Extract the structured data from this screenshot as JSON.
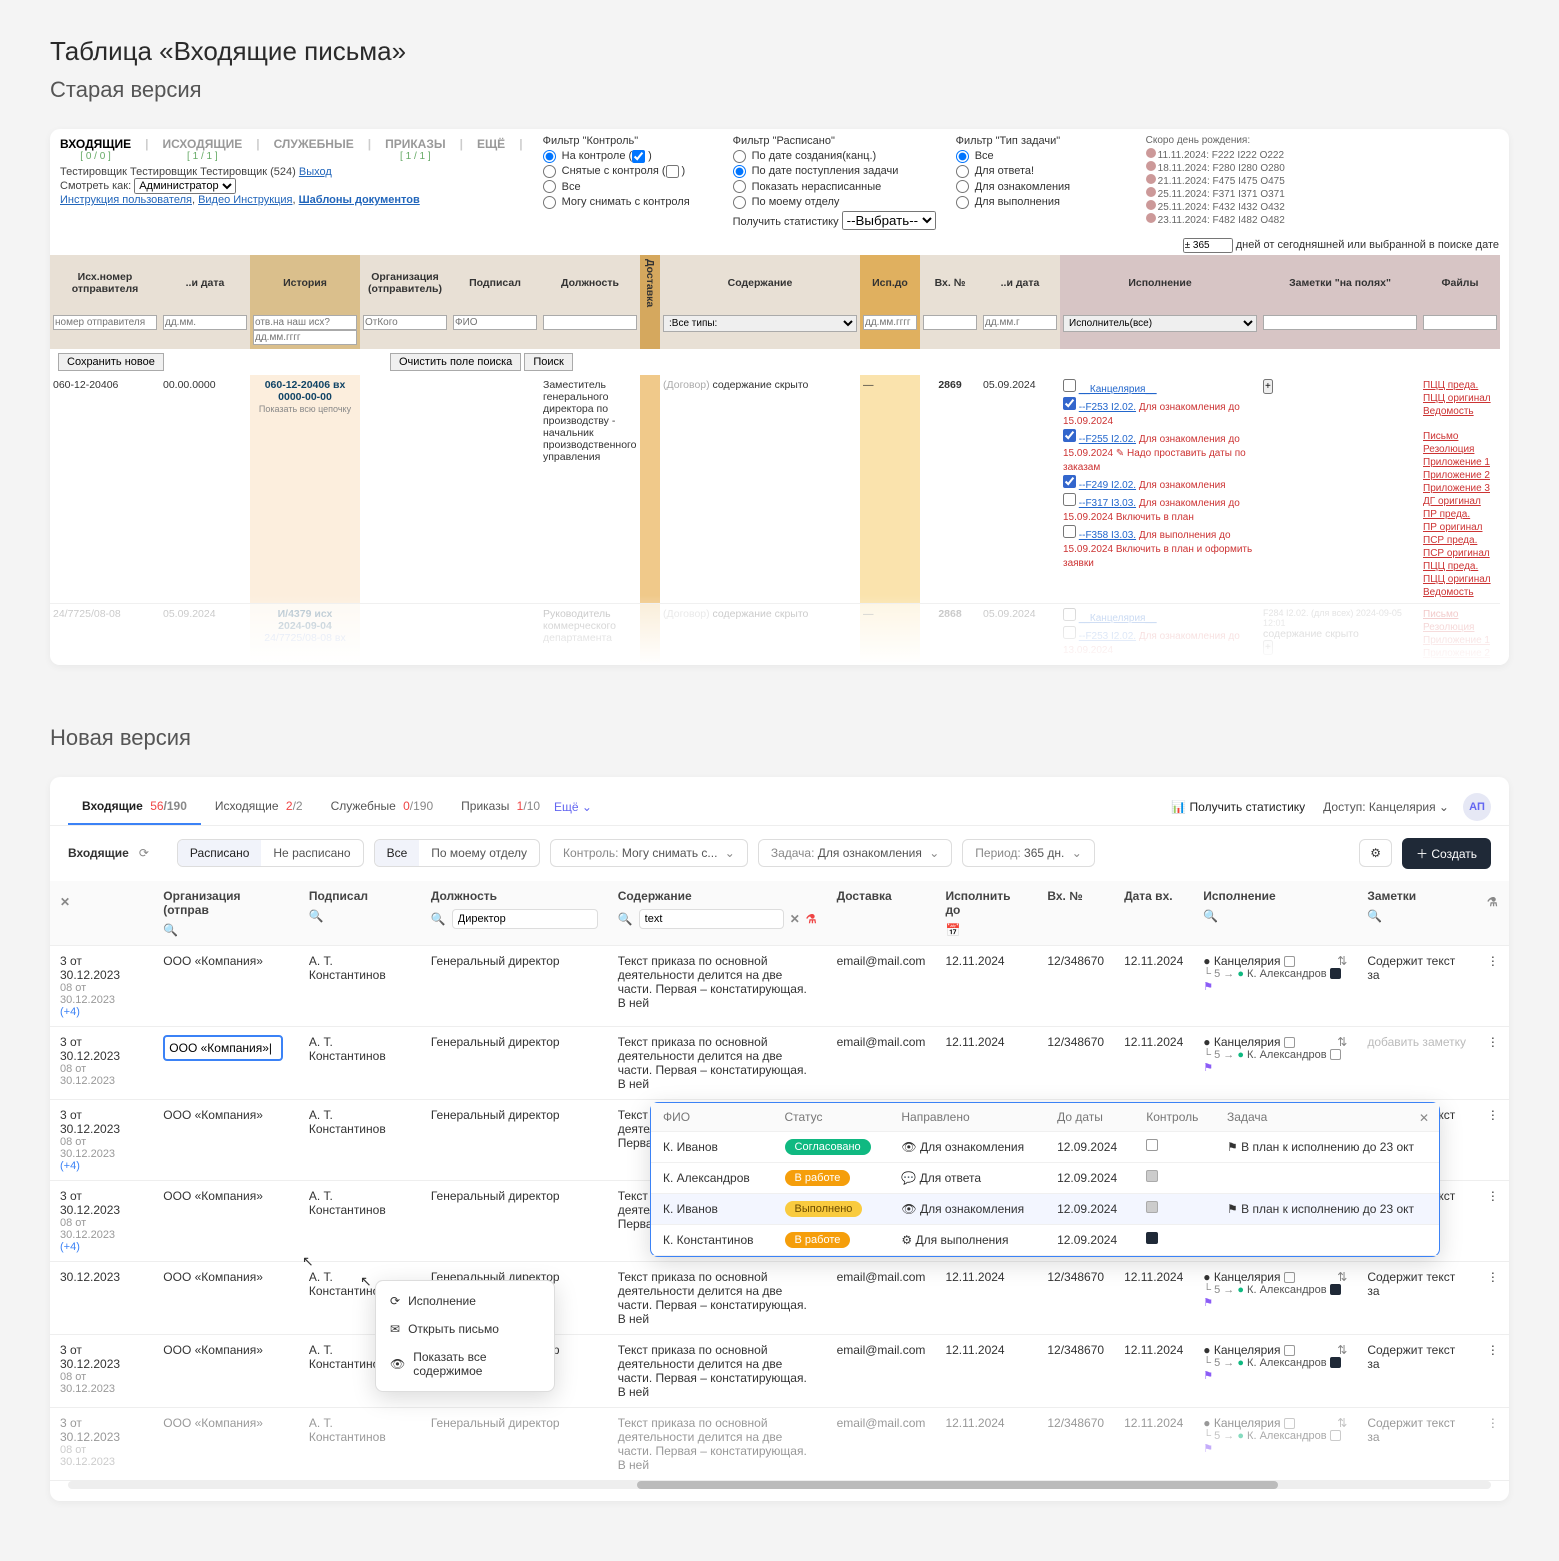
{
  "page": {
    "title": "Таблица «Входящие письма»",
    "oldLabel": "Старая версия",
    "newLabel": "Новая версия"
  },
  "old": {
    "tabs": [
      {
        "label": "ВХОДЯЩИЕ",
        "count": "[ 0 / 0 ]",
        "active": true
      },
      {
        "label": "ИСХОДЯЩИЕ",
        "count": "[ 1 / 1 ]"
      },
      {
        "label": "СЛУЖЕБНЫЕ",
        "count": ""
      },
      {
        "label": "ПРИКАЗЫ",
        "count": "[ 1 / 1 ]"
      },
      {
        "label": "ЕЩЁ",
        "count": ""
      }
    ],
    "user": {
      "name": "Тестировщик Тестировщик Тестировщик (524)",
      "logout": "Выход",
      "viewAs": "Смотреть как:",
      "role": "Администратор",
      "links": [
        "Инструкция пользователя",
        "Видео Инструкция",
        "Шаблоны документов"
      ]
    },
    "filters": {
      "control": {
        "title": "Фильтр \"Контроль\"",
        "opts": [
          "На контроле",
          "Снятые с контроля",
          "Все",
          "Могу снимать с контроля"
        ]
      },
      "scheduled": {
        "title": "Фильтр \"Расписано\"",
        "opts": [
          "По дате создания(канц.)",
          "По дате поступления задачи",
          "Показать нерасписанные",
          "По моему отделу"
        ],
        "stat": "Получить статистику",
        "select": "--Выбрать--"
      },
      "taskType": {
        "title": "Фильтр \"Тип задачи\"",
        "opts": [
          "Все",
          "Для ответа!",
          "Для ознакомления",
          "Для выполнения"
        ]
      },
      "birthday": {
        "title": "Скоро день рождения:",
        "items": [
          "11.11.2024: F222 I222 O222",
          "18.11.2024: F280 I280 O280",
          "21.11.2024: F475 I475 O475",
          "25.11.2024: F371 I371 O371",
          "25.11.2024: F432 I432 O432",
          "23.11.2024: F482 I482 O482"
        ]
      },
      "daysInput": "± 365",
      "daysText": "дней от сегодняшней или выбранной в поиске дате"
    },
    "headers": [
      "Исх.номер отправителя",
      "..и дата",
      "История",
      "Организация (отправитель)",
      "Подписал",
      "Должность",
      "Доставка",
      "Содержание",
      "Исп.до",
      "Вх. №",
      "..и дата",
      "Исполнение",
      "Заметки \"на полях\"",
      "Файлы"
    ],
    "search": {
      "placeholders": [
        "номер отправителя",
        "дд.мм.",
        "отв.на наш исх?",
        "ОтКого",
        "ФИО",
        "",
        "",
        "",
        "дд.мм.гггг",
        "",
        "дд.мм.г",
        "Исполнитель(все)",
        "",
        ""
      ],
      "hist2": "дд.мм.гггг",
      "types": ":Все типы:"
    },
    "buttons": {
      "save": "Сохранить новое",
      "clear": "Очистить поле поиска",
      "search": "Поиск"
    },
    "rows": [
      {
        "num": "060-12-20406",
        "date": "00.00.0000",
        "hist": "060-12-20406 вх",
        "hist2": "0000-00-00",
        "chain": "Показать всю цепочку",
        "pos": "Заместитель генерального директора по производству - начальник производственного управления",
        "content": "содержание скрыто",
        "contentTag": "(Договор)",
        "incNo": "2869",
        "incDate": "05.09.2024",
        "exec": [
          {
            "label": "__Канцелярия__"
          },
          {
            "label": "--F253 I2.02.",
            "extra": "Для ознакомления до 15.09.2024",
            "checked": true
          },
          {
            "label": "--F255 I2.02.",
            "extra": "Для ознакомления до 15.09.2024 ✎ Надо проставить даты по заказам",
            "checked": true
          },
          {
            "label": "--F249 I2.02.",
            "extra": "Для ознакомления",
            "checked": true
          },
          {
            "label": "--F317 I3.03.",
            "extra": "Для ознакомления до 15.09.2024 Включить в план"
          },
          {
            "label": "--F358 I3.03.",
            "extra": "Для выполнения до 15.09.2024 Включить в план и оформить заявки"
          }
        ],
        "filesBtn": "+",
        "files": [
          "ПЦЦ преда.",
          "ПЦЦ оригинал",
          "Ведомость",
          "",
          "Письмо",
          "Резолюция",
          "Приложение 1",
          "Приложение 2",
          "Приложение 3",
          "ДГ оригинал",
          "ПР преда.",
          "ПР оригинал",
          "ПСР преда.",
          "ПСР оригинал",
          "ПЦЦ преда.",
          "ПЦЦ оригинал",
          "Ведомость"
        ]
      },
      {
        "fade": true,
        "num": "24/7725/08-08",
        "date": "05.09.2024",
        "hist": "И/4379 исх",
        "hist2": "2024-09-04",
        "hist3": "24/7725/08-08 вх",
        "pos": "Руководитель коммерческого департамента",
        "content": "содержание скрыто",
        "contentTag": "(Договор)",
        "incNo": "2868",
        "incDate": "05.09.2024",
        "exec": [
          {
            "label": "__Канцелярия__"
          },
          {
            "label": "--F253 I2.02.",
            "extra": "Для ознакомления до 13.09.2024"
          }
        ],
        "noteHdr": "F284 I2.02.  (для всех)  2024-09-05 12:01",
        "note": "содержание скрыто",
        "files": [
          "Письмо",
          "Резолюция",
          "Приложение 1",
          "Приложение 2"
        ]
      }
    ]
  },
  "new": {
    "tabs": [
      {
        "label": "Входящие",
        "red": "56",
        "gray": "/190",
        "active": true
      },
      {
        "label": "Исходящие",
        "red": "2",
        "gray": "/2"
      },
      {
        "label": "Служебные",
        "red": "0",
        "gray": "/190"
      },
      {
        "label": "Приказы",
        "red": "1",
        "gray": "/10"
      }
    ],
    "more": "Ещё ⌄",
    "statsIcon": "📊",
    "stats": "Получить статистику",
    "accessLabel": "Доступ:",
    "access": "Канцелярия ⌄",
    "avatar": "АП",
    "toolbar": {
      "hdr": "Входящие",
      "refresh": "⟳",
      "seg1": [
        "Расписано",
        "Не расписано"
      ],
      "seg2": [
        "Все",
        "По моему отделу"
      ],
      "chips": [
        {
          "k": "Контроль:",
          "v": "Могу снимать с..."
        },
        {
          "k": "Задача:",
          "v": "Для ознакомления"
        },
        {
          "k": "Период:",
          "v": "365 дн."
        }
      ],
      "filter": "⚙",
      "create": "＋ Создать"
    },
    "cols": [
      "",
      "Организация (отправ",
      "Подписал",
      "Должность",
      "Содержание",
      "Доставка",
      "Исполнить до",
      "Вх. №",
      "Дата вх.",
      "Исполнение",
      "Заметки",
      ""
    ],
    "searchRow": {
      "clear": "✕",
      "mag": "🔍",
      "dir": "Директор",
      "text": "text",
      "cal": "📅",
      "filt": "⚗"
    },
    "row": {
      "dcol": "3 от 30.12.2023",
      "dcol2": "08 от 30.12.2023",
      "plus": "(+4)",
      "single": "30.12.2023",
      "org": "ООО «Компания»",
      "orgEdit": "ООО «Компания»|",
      "sign": "А. Т. Константинов",
      "pos": "Генеральный директор",
      "body": "Текст приказа по основной деятельности делится на две части. Первая – констатирующая. В ней",
      "bodyShort": "Текст приказа по осно деятельности делится части. Первая – констатирующая. В н",
      "deliv": "email@mail.com",
      "due": "12.11.2024",
      "incNo": "12/348670",
      "incDate": "12.11.2024",
      "exec": {
        "l1": "● Канцелярия",
        "l2": "5 → ● К. Александров",
        "box": "☐",
        "boxChk": "☑",
        "flag": "⚑",
        "arrows": "⇅"
      },
      "note": "Содержит текст за",
      "notePh": "добавить заметку",
      "dots": "⋮"
    },
    "popup": {
      "cols": [
        "ФИО",
        "Статус",
        "Направлено",
        "До даты",
        "Контроль",
        "Задача"
      ],
      "rows": [
        {
          "name": "К. Иванов",
          "status": "Согласовано",
          "pill": "g",
          "dir": "👁 Для ознакомления",
          "date": "12.09.2024",
          "ctrl": "",
          "task": "⚑ В план к исполнению до 23 окт"
        },
        {
          "name": "К. Александров",
          "status": "В работе",
          "pill": "o",
          "dir": "💬 Для ответа",
          "date": "12.09.2024",
          "ctrl": "half",
          "task": ""
        },
        {
          "name": "К. Иванов",
          "status": "Выполнено",
          "pill": "y",
          "dir": "👁 Для ознакомления",
          "date": "12.09.2024",
          "ctrl": "half",
          "task": "⚑ В план к исполнению до 23 окт",
          "sel": true
        },
        {
          "name": "К. Константинов",
          "status": "В работе",
          "pill": "o",
          "dir": "⚙ Для выполнения",
          "date": "12.09.2024",
          "ctrl": "on",
          "task": ""
        }
      ],
      "close": "✕"
    },
    "ctxmenu": [
      "Исполнение",
      "Открыть письмо",
      "Показать все содержимое"
    ],
    "ctxicons": [
      "⟳",
      "✉",
      "👁"
    ]
  },
  "style": {
    "oldHeaderBg": "#e8e0d5",
    "oldHistBg": "#dabf8c",
    "oldDueBg": "#e0b05f",
    "oldExecBg": "#d7c5c5",
    "popupBorder": "#3b82f6",
    "pillGreen": "#10b981",
    "pillOrange": "#f59e0b",
    "pillYellow": "#f9cb3f",
    "createBg": "#1f2937"
  }
}
